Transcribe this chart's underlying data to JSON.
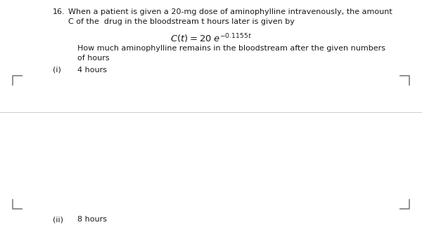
{
  "background_color": "#ffffff",
  "question_number": "16.",
  "line1": "When a patient is given a 20-mg dose of aminophylline intravenously, the amount",
  "line2": "C of the  drug in the bloodstream t hours later is given by",
  "formula_text": "$C(t) = 20\\; e^{-0.1155t}$",
  "follow_up_line1": "How much aminophylline remains in the bloodstream after the given numbers",
  "follow_up_line2": "of hours",
  "part_i_label": "(i)",
  "part_i_text": "4 hours",
  "part_ii_label": "(ii)",
  "part_ii_text": "8 hours",
  "text_color": "#1a1a1a",
  "box_color": "#888888",
  "divider_color": "#cccccc",
  "fig_width": 6.0,
  "fig_height": 3.21,
  "dpi": 100
}
